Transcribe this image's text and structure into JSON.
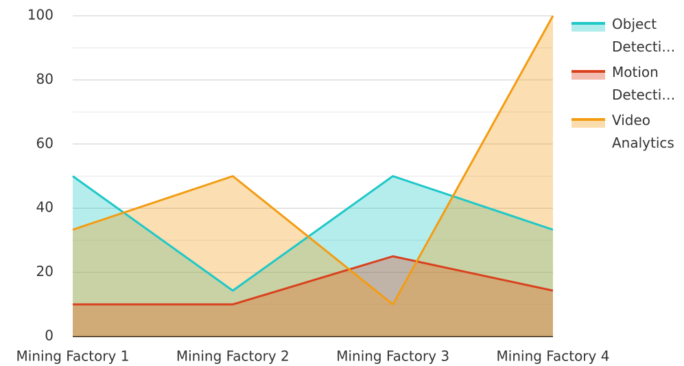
{
  "chart_data": {
    "type": "area",
    "categories": [
      "Mining Factory 1",
      "Mining Factory 2",
      "Mining Factory 3",
      "Mining Factory 4"
    ],
    "series": [
      {
        "name": "Object Detecti…",
        "color": "#1ec8c8",
        "values": [
          50,
          14.3,
          50,
          33.3
        ]
      },
      {
        "name": "Motion Detecti…",
        "color": "#d9411e",
        "values": [
          10,
          10,
          25,
          14.3
        ]
      },
      {
        "name": "Video Analytics",
        "color": "#f39c12",
        "values": [
          33.3,
          50,
          10,
          100
        ]
      }
    ],
    "ylim": [
      0,
      100
    ],
    "yticks": [
      0,
      20,
      40,
      60,
      80,
      100
    ],
    "minor_yticks": [
      10,
      30,
      50,
      70,
      90
    ],
    "grid": true,
    "legend": "right"
  }
}
